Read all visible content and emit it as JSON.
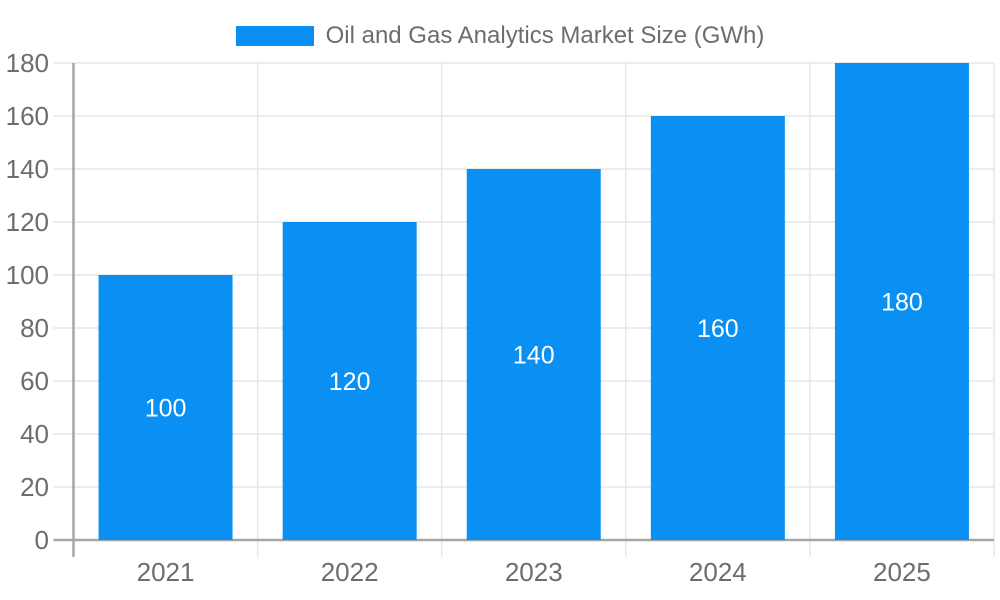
{
  "chart_data": {
    "type": "bar",
    "title": "Oil and Gas Analytics Market Size (GWh)",
    "categories": [
      "2021",
      "2022",
      "2023",
      "2024",
      "2025"
    ],
    "values": [
      100,
      120,
      140,
      160,
      180
    ],
    "bar_labels": [
      "100",
      "120",
      "140",
      "160",
      "180"
    ],
    "xlabel": "",
    "ylabel": "",
    "ylim": [
      0,
      180
    ],
    "ytick_step": 20,
    "yticks": [
      "0",
      "20",
      "40",
      "60",
      "80",
      "100",
      "120",
      "140",
      "160",
      "180"
    ],
    "grid": true,
    "legend_position": "top",
    "colors": {
      "bar": "#0a90f2",
      "bar_label": "#ffffff",
      "grid": "#e6e6e6",
      "axis": "#a6a6a6",
      "text": "#6d6d6d",
      "background": "#ffffff"
    }
  }
}
